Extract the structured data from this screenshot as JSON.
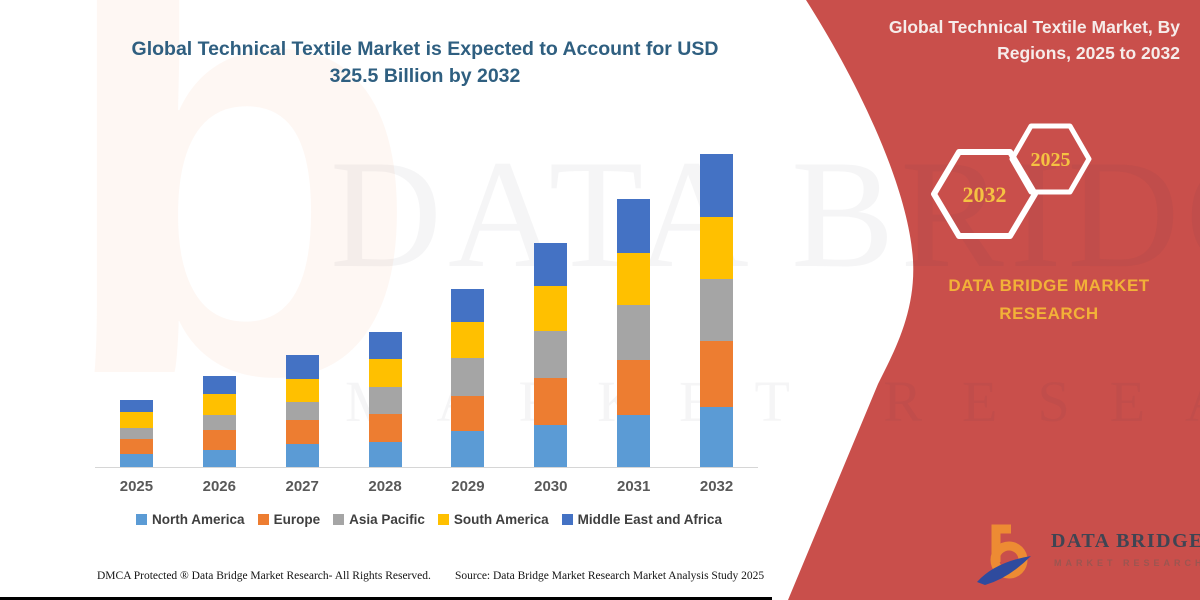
{
  "header": {
    "chart_title": "Global Technical Textile Market is Expected to Account for USD 325.5 Billion by 2032"
  },
  "side_panel": {
    "title": "Global Technical Textile Market, By Regions, 2025 to 2032",
    "hexagons": [
      {
        "label": "2032"
      },
      {
        "label": "2025"
      }
    ],
    "brand_text": "DATA BRIDGE MARKET RESEARCH",
    "background_color": "#C94F4B",
    "hexagon_text_color": "#F5C242",
    "brand_text_color": "#F2B138"
  },
  "chart_data": {
    "type": "bar",
    "stacked": true,
    "title": "Global Technical Textile Market is Expected to Account for USD 325.5 Billion by 2032",
    "unit": "USD Billion",
    "categories": [
      "2025",
      "2026",
      "2027",
      "2028",
      "2029",
      "2030",
      "2031",
      "2032"
    ],
    "series": [
      {
        "name": "North America",
        "color": "#5B9BD5",
        "values": [
          14.0,
          17.5,
          24.0,
          26.0,
          37.0,
          44.0,
          54.0,
          62.9
        ]
      },
      {
        "name": "Europe",
        "color": "#ED7D31",
        "values": [
          15.0,
          21.0,
          24.5,
          29.0,
          37.0,
          49.0,
          57.5,
          68.1
        ]
      },
      {
        "name": "Asia Pacific",
        "color": "#A5A5A5",
        "values": [
          12.0,
          16.0,
          19.0,
          28.5,
          39.0,
          48.0,
          57.0,
          64.6
        ]
      },
      {
        "name": "South America",
        "color": "#FFC000",
        "values": [
          16.0,
          21.0,
          24.0,
          29.0,
          38.0,
          47.5,
          54.0,
          64.6
        ]
      },
      {
        "name": "Middle East and Africa",
        "color": "#4472C4",
        "values": [
          13.0,
          19.0,
          24.5,
          28.0,
          34.0,
          44.5,
          56.5,
          65.3
        ]
      }
    ],
    "totals_by_year": [
      70.0,
      94.5,
      116.0,
      140.5,
      185.0,
      233.0,
      279.0,
      325.5
    ],
    "xlabel": "",
    "ylabel": "",
    "y_axis_shown": false,
    "grid": false,
    "legend_position": "bottom",
    "highlight_total_2032": "325.5"
  },
  "watermark": {
    "letter": "b",
    "line1": "DATA BRIDGE",
    "line2": "MARKET RESEARCH"
  },
  "footer": {
    "left": "DMCA Protected ® Data Bridge Market Research-  All Rights Reserved.",
    "source": "Source: Data Bridge Market Research  Market Analysis Study 2025"
  },
  "logo": {
    "name": "DATA BRIDGE",
    "subtitle": "MARKET RESEARCH"
  },
  "colors": {
    "chart_title": "#2F5F80",
    "axis_label": "#595959",
    "legend_text": "#3F3F3F"
  }
}
